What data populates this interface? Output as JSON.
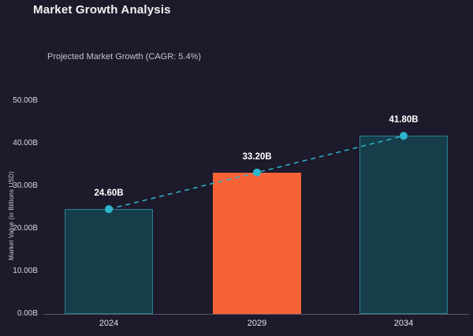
{
  "title": "Market Growth Analysis",
  "subtitle": "Projected Market Growth (CAGR: 5.4%)",
  "chart_data": {
    "type": "bar",
    "title": "Market Growth Analysis",
    "subtitle": "Projected Market Growth (CAGR: 5.4%)",
    "categories": [
      "2024",
      "2029",
      "2034"
    ],
    "values": [
      24.6,
      33.2,
      41.8
    ],
    "value_labels": [
      "24.60B",
      "33.20B",
      "41.80B"
    ],
    "xlabel": "",
    "ylabel": "Market Value (in Billions USD)",
    "ylim": [
      0,
      50
    ],
    "ytick_values": [
      0,
      10,
      20,
      30,
      40,
      50
    ],
    "ytick_labels": [
      "0.00B",
      "10.00B",
      "20.00B",
      "30.00B",
      "40.00B",
      "50.00B"
    ],
    "grid": "off",
    "legend": "none",
    "trend_line": {
      "style": "dashed",
      "color": "#2cb5cd",
      "marker": "circle",
      "marker_color": "#2cb5cd"
    },
    "colors": {
      "background": "#1d1a2b",
      "bar_fills": [
        "#163e4a",
        "#f96236",
        "#163e4a"
      ],
      "bar_borders": [
        "#2c7f93",
        "#f96236",
        "#2c7f93"
      ],
      "axis_line": "#5a5868",
      "label_text": "#ffffff"
    }
  }
}
